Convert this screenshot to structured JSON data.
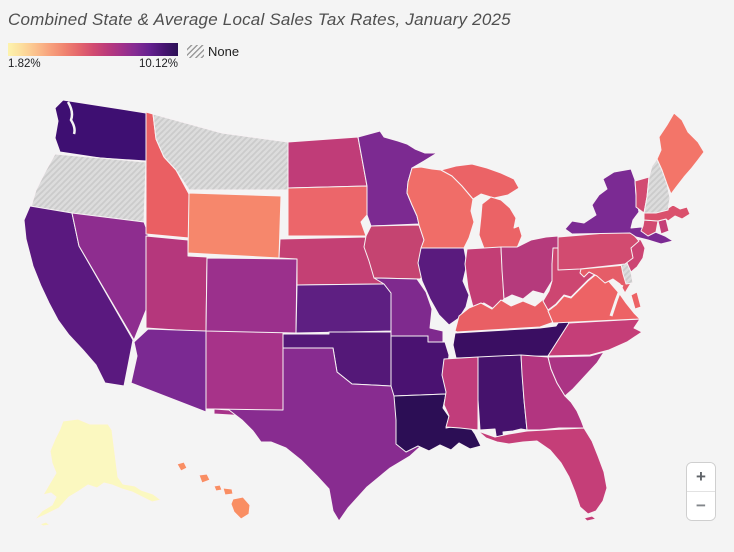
{
  "title": "Combined State & Average Local Sales Tax Rates, January 2025",
  "legend": {
    "min_label": "1.82%",
    "max_label": "10.12%",
    "none_label": "None",
    "gradient": [
      "#fdf3ad",
      "#fcdd9c",
      "#fbbf8c",
      "#f7a07c",
      "#f0836f",
      "#e4666c",
      "#d24b70",
      "#bb3a7a",
      "#a23189",
      "#842b93",
      "#64208f",
      "#471572",
      "#2c1156"
    ]
  },
  "map": {
    "background": "#f4f4f4",
    "state_border_color": "#f7f2f4",
    "none_fill": "#dcdcdc",
    "none_stripe_color": "#cbcbcb",
    "states": [
      {
        "id": "WA",
        "name": "Washington",
        "fill": "#3e0f72",
        "hatched": false
      },
      {
        "id": "OR",
        "name": "Oregon",
        "fill": "#dcdcdc",
        "hatched": true
      },
      {
        "id": "CA",
        "name": "California",
        "fill": "#5a197f",
        "hatched": false
      },
      {
        "id": "NV",
        "name": "Nevada",
        "fill": "#8e2d8f",
        "hatched": false
      },
      {
        "id": "ID",
        "name": "Idaho",
        "fill": "#ea5f63",
        "hatched": false
      },
      {
        "id": "MT",
        "name": "Montana",
        "fill": "#dcdcdc",
        "hatched": true
      },
      {
        "id": "WY",
        "name": "Wyoming",
        "fill": "#f6876c",
        "hatched": false
      },
      {
        "id": "UT",
        "name": "Utah",
        "fill": "#b5377c",
        "hatched": false
      },
      {
        "id": "AZ",
        "name": "Arizona",
        "fill": "#7b2992",
        "hatched": false
      },
      {
        "id": "NM",
        "name": "New Mexico",
        "fill": "#a73389",
        "hatched": false
      },
      {
        "id": "CO",
        "name": "Colorado",
        "fill": "#9b308c",
        "hatched": false
      },
      {
        "id": "ND",
        "name": "North Dakota",
        "fill": "#c03c78",
        "hatched": false
      },
      {
        "id": "SD",
        "name": "South Dakota",
        "fill": "#ec666a",
        "hatched": false
      },
      {
        "id": "NE",
        "name": "Nebraska",
        "fill": "#c44074",
        "hatched": false
      },
      {
        "id": "KS",
        "name": "Kansas",
        "fill": "#5e1f82",
        "hatched": false
      },
      {
        "id": "OK",
        "name": "Oklahoma",
        "fill": "#541878",
        "hatched": false
      },
      {
        "id": "TX",
        "name": "Texas",
        "fill": "#882c90",
        "hatched": false
      },
      {
        "id": "MN",
        "name": "Minnesota",
        "fill": "#7c2a91",
        "hatched": false
      },
      {
        "id": "IA",
        "name": "Iowa",
        "fill": "#c54471",
        "hatched": false
      },
      {
        "id": "MO",
        "name": "Missouri",
        "fill": "#7f2a8e",
        "hatched": false
      },
      {
        "id": "AR",
        "name": "Arkansas",
        "fill": "#4a1271",
        "hatched": false
      },
      {
        "id": "LA",
        "name": "Louisiana",
        "fill": "#2c0e55",
        "hatched": false
      },
      {
        "id": "WI",
        "name": "Wisconsin",
        "fill": "#f06d68",
        "hatched": false
      },
      {
        "id": "IL",
        "name": "Illinois",
        "fill": "#5a1b7e",
        "hatched": false
      },
      {
        "id": "MI",
        "name": "Michigan",
        "fill": "#eb6366",
        "hatched": false
      },
      {
        "id": "IN",
        "name": "Indiana",
        "fill": "#c33e75",
        "hatched": false
      },
      {
        "id": "OH",
        "name": "Ohio",
        "fill": "#b53a7c",
        "hatched": false
      },
      {
        "id": "KY",
        "name": "Kentucky",
        "fill": "#e95f64",
        "hatched": false
      },
      {
        "id": "TN",
        "name": "Tennessee",
        "fill": "#3a0e62",
        "hatched": false
      },
      {
        "id": "MS",
        "name": "Mississippi",
        "fill": "#c13d7b",
        "hatched": false
      },
      {
        "id": "AL",
        "name": "Alabama",
        "fill": "#45126c",
        "hatched": false
      },
      {
        "id": "GA",
        "name": "Georgia",
        "fill": "#b23580",
        "hatched": false
      },
      {
        "id": "FL",
        "name": "Florida",
        "fill": "#c53e78",
        "hatched": false
      },
      {
        "id": "SC",
        "name": "South Carolina",
        "fill": "#ab3484",
        "hatched": false
      },
      {
        "id": "NC",
        "name": "North Carolina",
        "fill": "#c53e78",
        "hatched": false
      },
      {
        "id": "VA",
        "name": "Virginia",
        "fill": "#ed6365",
        "hatched": false
      },
      {
        "id": "WV",
        "name": "West Virginia",
        "fill": "#cd4671",
        "hatched": false
      },
      {
        "id": "MD",
        "name": "Maryland",
        "fill": "#e55d68",
        "hatched": false
      },
      {
        "id": "DE",
        "name": "Delaware",
        "fill": "#dcdcdc",
        "hatched": true
      },
      {
        "id": "NJ",
        "name": "New Jersey",
        "fill": "#cc4473",
        "hatched": false
      },
      {
        "id": "PA",
        "name": "Pennsylvania",
        "fill": "#d24b70",
        "hatched": false
      },
      {
        "id": "NY",
        "name": "New York",
        "fill": "#7b2a93",
        "hatched": false
      },
      {
        "id": "CT",
        "name": "Connecticut",
        "fill": "#d24a71",
        "hatched": false
      },
      {
        "id": "RI",
        "name": "Rhode Island",
        "fill": "#c53e78",
        "hatched": false
      },
      {
        "id": "MA",
        "name": "Massachusetts",
        "fill": "#da506c",
        "hatched": false
      },
      {
        "id": "VT",
        "name": "Vermont",
        "fill": "#d24a71",
        "hatched": false
      },
      {
        "id": "NH",
        "name": "New Hampshire",
        "fill": "#dcdcdc",
        "hatched": true
      },
      {
        "id": "ME",
        "name": "Maine",
        "fill": "#f37569",
        "hatched": false
      },
      {
        "id": "AK",
        "name": "Alaska",
        "fill": "#fbf8c0",
        "hatched": false
      },
      {
        "id": "HI",
        "name": "Hawaii",
        "fill": "#f98e63",
        "hatched": false
      }
    ]
  },
  "zoom_controls": {
    "zoom_in": "+",
    "zoom_out": "−"
  }
}
